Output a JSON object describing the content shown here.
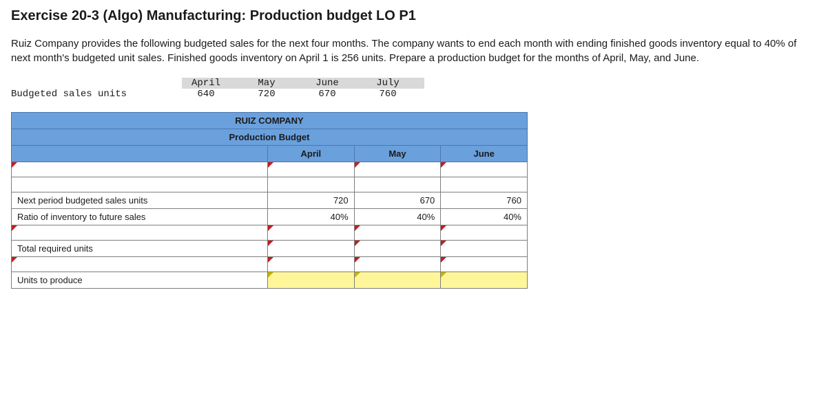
{
  "heading": "Exercise 20-3 (Algo) Manufacturing: Production budget LO P1",
  "prompt": "Ruiz Company provides the following budgeted sales for the next four months. The company wants to end each month with ending finished goods inventory equal to 40% of next month's budgeted unit sales. Finished goods inventory on April 1 is 256 units. Prepare a production budget for the months of April, May, and June.",
  "sales": {
    "row_label": "Budgeted sales units",
    "months": [
      "April",
      "May",
      "June",
      "July"
    ],
    "values": [
      "640",
      "720",
      "670",
      "760"
    ]
  },
  "budget": {
    "company": "RUIZ COMPANY",
    "title": "Production Budget",
    "col_headers": [
      "April",
      "May",
      "June"
    ],
    "rows": {
      "blank1": {
        "label": "",
        "cells": [
          "",
          "",
          ""
        ]
      },
      "blank2": {
        "label": "",
        "cells": [
          "",
          "",
          ""
        ]
      },
      "next_sales": {
        "label": "Next period budgeted sales units",
        "cells": [
          "720",
          "670",
          "760"
        ]
      },
      "ratio": {
        "label": "Ratio of inventory to future sales",
        "cells": [
          "40%",
          "40%",
          "40%"
        ]
      },
      "blank3": {
        "label": "",
        "cells": [
          "",
          "",
          ""
        ]
      },
      "total_req": {
        "label": "Total required units",
        "cells": [
          "",
          "",
          ""
        ]
      },
      "blank4": {
        "label": "",
        "cells": [
          "",
          "",
          ""
        ]
      },
      "units_produce": {
        "label": "Units to produce",
        "cells": [
          "",
          "",
          ""
        ]
      }
    }
  },
  "style": {
    "header_bg": "#6aa0dc",
    "highlight_bg": "#fff69a",
    "mono_hdr_bg": "#d9d9d9"
  }
}
